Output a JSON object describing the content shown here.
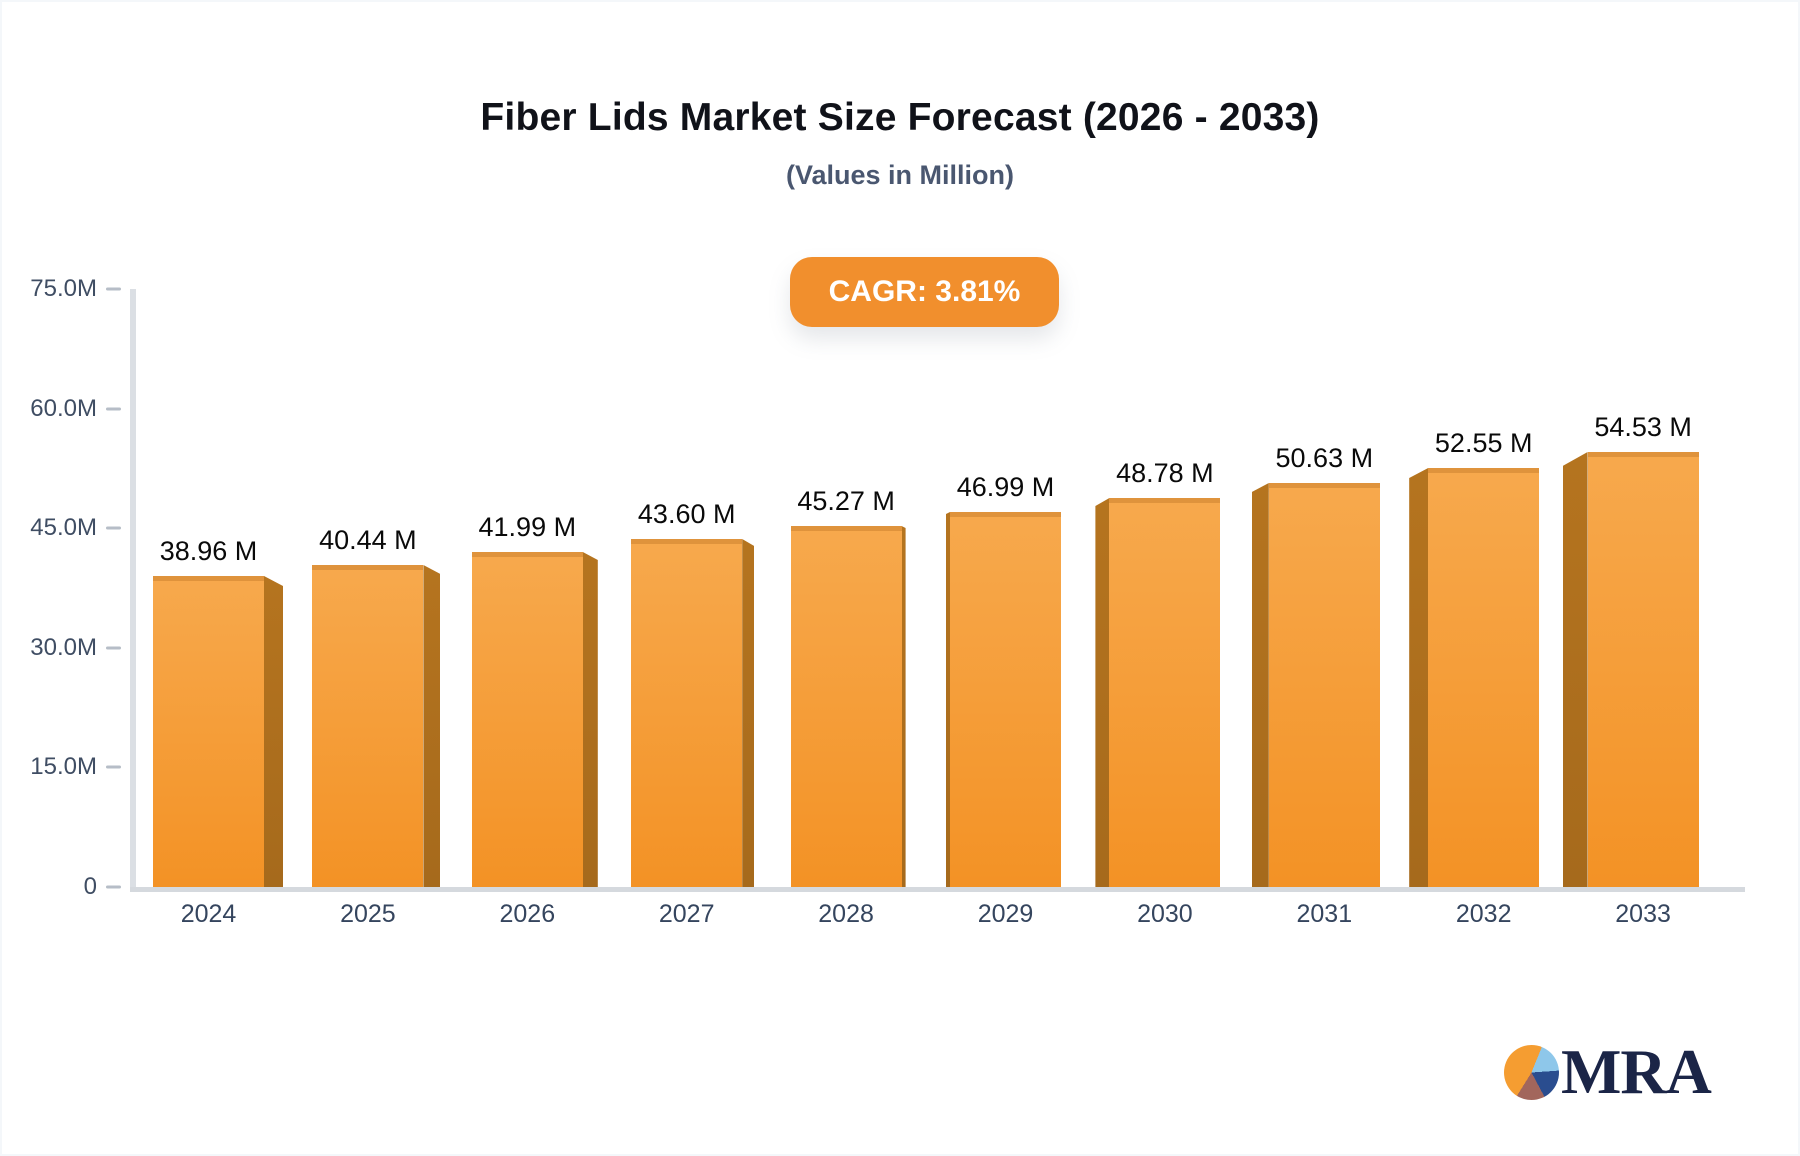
{
  "header": {
    "title": "Fiber Lids Market Size Forecast (2026 - 2033)",
    "subtitle": "(Values in Million)",
    "cagr_label": "CAGR: 3.81%"
  },
  "chart_data": {
    "type": "bar",
    "title": "Fiber Lids Market Size Forecast (2026 - 2033)",
    "subtitle": "(Values in Million)",
    "unit": "Million",
    "cagr": "3.81%",
    "categories": [
      "2024",
      "2025",
      "2026",
      "2027",
      "2028",
      "2029",
      "2030",
      "2031",
      "2032",
      "2033"
    ],
    "values": [
      38.96,
      40.44,
      41.99,
      43.6,
      45.27,
      46.99,
      48.78,
      50.63,
      52.55,
      54.53
    ],
    "value_labels": [
      "38.96 M",
      "40.44 M",
      "41.99 M",
      "43.60 M",
      "45.27 M",
      "46.99 M",
      "48.78 M",
      "50.63 M",
      "52.55 M",
      "54.53 M"
    ],
    "xlabel": "",
    "ylabel": "",
    "ylim": [
      0,
      75
    ],
    "y_ticks": [
      {
        "label": "75.0M",
        "value": 75
      },
      {
        "label": "60.0M",
        "value": 60
      },
      {
        "label": "45.0M",
        "value": 45
      },
      {
        "label": "30.0M",
        "value": 30
      },
      {
        "label": "15.0M",
        "value": 15
      },
      {
        "label": "0",
        "value": 0
      }
    ],
    "grid": false,
    "legend": false,
    "bar_style": "3d-perspective",
    "colors": {
      "bar_face_top": "#F7A94D",
      "bar_face_bottom": "#F39225",
      "bar_side": "#B5741F",
      "badge_background": "#F18F2D",
      "badge_text": "#FFFFFF",
      "title_text": "#101219",
      "subtitle_text": "#4A5770",
      "axis_line": "#D5D9DE",
      "tick_text": "#3F4D63",
      "year_text": "#35455E",
      "value_text": "#0A0A0A"
    }
  },
  "logo": {
    "text": "MRA",
    "pie_colors": [
      "#F59D31",
      "#8EC7EA",
      "#2A4D8F",
      "#A2665C"
    ],
    "text_color": "#1B2547"
  }
}
